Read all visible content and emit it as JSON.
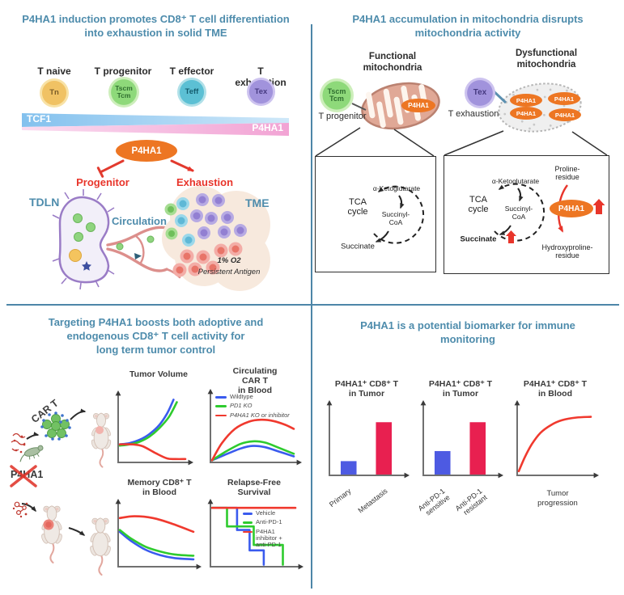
{
  "colors": {
    "accent_teal": "#4e8cac",
    "divider": "#4d86a8",
    "red": "#e8352b",
    "orange": "#ed7623",
    "line_blue": "#3a5bee",
    "line_green": "#2ecb2e",
    "line_red": "#f0392e",
    "bar_blue": "#4d5ae2",
    "bar_red": "#e82050"
  },
  "panel1": {
    "title1": "P4HA1 induction promotes CD8⁺ T cell differentiation",
    "title2": "into exhaustion in solid TME",
    "cells": [
      {
        "label": "T naive",
        "abbr": "Tn"
      },
      {
        "label": "T progenitor",
        "abbr1": "Tscm",
        "abbr2": "Tcm"
      },
      {
        "label": "T effector",
        "abbr": "Teff"
      },
      {
        "label": "T exhaustion",
        "abbr": "Tex"
      }
    ],
    "tcf1": "TCF1",
    "p4ha1_gradient": "P4HA1",
    "p4ha1_oval": "P4HA1",
    "progenitor": "Progenitor",
    "exhaustion": "Exhaustion",
    "tdln": "TDLN",
    "circulation": "Circulation",
    "tme": "TME",
    "hypoxia1": "1% O2",
    "hypoxia2": "Persistent Antigen"
  },
  "panel2": {
    "title1": "P4HA1 accumulation in mitochondria disrupts",
    "title2": "mitochondria activity",
    "functional1": "Functional",
    "functional2": "mitochondria",
    "dysfunctional1": "Dysfunctional",
    "dysfunctional2": "mitochondria",
    "tscm": "Tscm",
    "tcm": "Tcm",
    "t_progenitor": "T progenitor",
    "tex": "Tex",
    "t_exhaustion": "T exhaustion",
    "p4ha1": "P4HA1",
    "box_left": {
      "tca1": "TCA",
      "tca2": "cycle",
      "akg": "α-Ketoglutarate",
      "succinyl1": "Succinyl-",
      "succinyl2": "CoA",
      "succinate": "Succinate"
    },
    "box_right": {
      "tca1": "TCA",
      "tca2": "cycle",
      "akg": "α-Ketoglutarate",
      "succinyl1": "Succinyl-",
      "succinyl2": "CoA",
      "succinate": "Succinate",
      "proline1": "Proline-",
      "proline2": "residue",
      "p4ha1": "P4HA1",
      "hyp1": "Hydroxyproline-",
      "hyp2": "residue"
    }
  },
  "panel3": {
    "title1": "Targeting P4HA1 boosts both adoptive and",
    "title2": "endogenous CD8⁺ T cell activity for",
    "title3": "long term tumor control",
    "car_t": "CAR T",
    "p4ha1_ko": "P4HA1",
    "chart1_title": "Tumor Volume",
    "chart2_title1": "Circulating CAR T",
    "chart2_title2": "in Blood",
    "chart3_title1": "Memory CD8⁺ T",
    "chart3_title2": "in Blood",
    "chart4_title1": "Relapse-Free",
    "chart4_title2": "Survival"
  },
  "panel4": {
    "title1": "P4HA1 is a potential biomarker for immune",
    "title2": "monitoring",
    "chart1_title1": "P4HA1⁺ CD8⁺ T",
    "chart1_title2": "in Tumor",
    "chart2_title1": "P4HA1⁺ CD8⁺ T",
    "chart2_title2": "in Tumor",
    "chart3_title1": "P4HA1⁺ CD8⁺ T",
    "chart3_title2": "in Blood",
    "xlabel1": "Tumor",
    "xlabel2": "progression"
  },
  "chart_data": [
    {
      "id": "tumor_volume",
      "type": "line",
      "title": "Tumor Volume",
      "series": [
        {
          "name": "Wildtype",
          "color": "#3a5bee",
          "italic": false,
          "points": [
            [
              0,
              0.27
            ],
            [
              0.15,
              0.29
            ],
            [
              0.3,
              0.34
            ],
            [
              0.45,
              0.43
            ],
            [
              0.6,
              0.57
            ],
            [
              0.72,
              0.75
            ],
            [
              0.82,
              0.97
            ]
          ]
        },
        {
          "name": "PD1 KO",
          "color": "#2ecb2e",
          "italic": true,
          "points": [
            [
              0,
              0.25
            ],
            [
              0.15,
              0.27
            ],
            [
              0.3,
              0.31
            ],
            [
              0.45,
              0.39
            ],
            [
              0.6,
              0.52
            ],
            [
              0.75,
              0.7
            ],
            [
              0.87,
              0.93
            ]
          ]
        },
        {
          "name": "P4HA1 KO or inhibitor",
          "color": "#f0392e",
          "italic": true,
          "points": [
            [
              0,
              0.27
            ],
            [
              0.2,
              0.27
            ],
            [
              0.35,
              0.24
            ],
            [
              0.55,
              0.13
            ],
            [
              0.72,
              0.05
            ],
            [
              0.85,
              0.04
            ],
            [
              1,
              0.04
            ]
          ]
        }
      ]
    },
    {
      "id": "circulating_car_t",
      "type": "line",
      "title": "Circulating CAR T in Blood",
      "legend_position": "top-left-inside",
      "series": [
        {
          "name": "Wildtype",
          "color": "#3a5bee",
          "italic": false,
          "points": [
            [
              0,
              0.02
            ],
            [
              0.15,
              0.1
            ],
            [
              0.35,
              0.2
            ],
            [
              0.5,
              0.24
            ],
            [
              0.65,
              0.22
            ],
            [
              0.8,
              0.16
            ],
            [
              1,
              0.08
            ]
          ]
        },
        {
          "name": "PD1 KO",
          "color": "#2ecb2e",
          "italic": true,
          "points": [
            [
              0,
              0.02
            ],
            [
              0.15,
              0.14
            ],
            [
              0.35,
              0.27
            ],
            [
              0.5,
              0.31
            ],
            [
              0.65,
              0.29
            ],
            [
              0.8,
              0.22
            ],
            [
              1,
              0.12
            ]
          ]
        },
        {
          "name": "P4HA1 KO or inhibitor",
          "color": "#f0392e",
          "italic": true,
          "points": [
            [
              0,
              0.02
            ],
            [
              0.12,
              0.28
            ],
            [
              0.28,
              0.5
            ],
            [
              0.45,
              0.61
            ],
            [
              0.6,
              0.64
            ],
            [
              0.75,
              0.62
            ],
            [
              0.9,
              0.56
            ],
            [
              1,
              0.5
            ]
          ]
        }
      ]
    },
    {
      "id": "memory_cd8",
      "type": "line",
      "title": "Memory CD8⁺ T in Blood",
      "series": [
        {
          "name": "Vehicle",
          "color": "#3a5bee",
          "italic": false,
          "points": [
            [
              0,
              0.57
            ],
            [
              0.15,
              0.42
            ],
            [
              0.35,
              0.27
            ],
            [
              0.55,
              0.18
            ],
            [
              0.75,
              0.13
            ],
            [
              1,
              0.11
            ]
          ]
        },
        {
          "name": "Anti-PD-1",
          "color": "#2ecb2e",
          "italic": false,
          "points": [
            [
              0,
              0.6
            ],
            [
              0.15,
              0.46
            ],
            [
              0.35,
              0.32
            ],
            [
              0.55,
              0.24
            ],
            [
              0.75,
              0.19
            ],
            [
              1,
              0.17
            ]
          ]
        },
        {
          "name": "P4HA1 inhibitor + anti-PD-1",
          "color": "#f0392e",
          "italic": false,
          "points": [
            [
              0,
              0.8
            ],
            [
              0.2,
              0.83
            ],
            [
              0.45,
              0.8
            ],
            [
              0.7,
              0.71
            ],
            [
              1,
              0.57
            ]
          ]
        }
      ]
    },
    {
      "id": "relapse_free_survival",
      "type": "step",
      "title": "Relapse-Free Survival",
      "legend_position": "right-inside",
      "series": [
        {
          "name": "Vehicle",
          "color": "#3a5bee",
          "italic": false,
          "points": [
            [
              0,
              0.97
            ],
            [
              0.3,
              0.97
            ],
            [
              0.3,
              0.6
            ],
            [
              0.45,
              0.6
            ],
            [
              0.45,
              0.26
            ],
            [
              0.62,
              0.26
            ],
            [
              0.62,
              0.02
            ]
          ]
        },
        {
          "name": "Anti-PD-1",
          "color": "#2ecb2e",
          "italic": false,
          "points": [
            [
              0,
              0.97
            ],
            [
              0.18,
              0.97
            ],
            [
              0.18,
              0.66
            ],
            [
              0.5,
              0.66
            ],
            [
              0.5,
              0.35
            ],
            [
              0.85,
              0.35
            ],
            [
              0.85,
              0.02
            ]
          ]
        },
        {
          "name": "P4HA1 inhibitor + anti-PD-1",
          "color": "#f0392e",
          "italic": false,
          "points": [
            [
              0,
              0.97
            ],
            [
              1,
              0.97
            ]
          ]
        }
      ]
    },
    {
      "id": "p4ha1_tumor_primary",
      "type": "bar",
      "title": "P4HA1⁺ CD8⁺ T in Tumor",
      "categories": [
        "Primary",
        "Metastasis"
      ],
      "values": [
        0.2,
        0.78
      ],
      "colors": [
        "#4d5ae2",
        "#e82050"
      ]
    },
    {
      "id": "p4ha1_tumor_antipd1",
      "type": "bar",
      "title": "P4HA1⁺ CD8⁺ T in Tumor",
      "categories": [
        "Anti-PD-1 sensitive",
        "Anti-PD-1 resistant"
      ],
      "values": [
        0.35,
        0.78
      ],
      "colors": [
        "#4d5ae2",
        "#e82050"
      ]
    },
    {
      "id": "p4ha1_blood",
      "type": "line",
      "title": "P4HA1⁺ CD8⁺ T in Blood",
      "xlabel": "Tumor progression",
      "series": [
        {
          "name": "P4HA1⁺ CD8⁺ T",
          "color": "#f0392e",
          "italic": false,
          "points": [
            [
              0,
              0.05
            ],
            [
              0.08,
              0.25
            ],
            [
              0.18,
              0.45
            ],
            [
              0.3,
              0.62
            ],
            [
              0.45,
              0.74
            ],
            [
              0.6,
              0.81
            ],
            [
              0.8,
              0.85
            ],
            [
              1,
              0.86
            ]
          ]
        }
      ]
    }
  ]
}
